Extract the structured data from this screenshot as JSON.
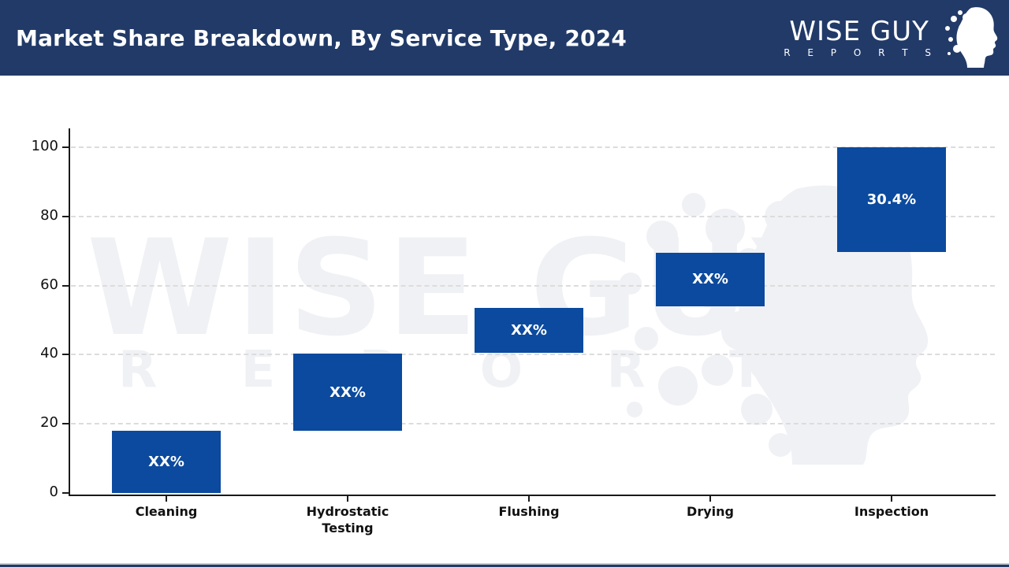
{
  "header": {
    "title": "Market Share Breakdown, By Service Type, 2024",
    "logo": {
      "line1": "WISE GUY",
      "line2": "R E P O R T S"
    },
    "bg_color": "#213a68"
  },
  "watermark": {
    "line1": "WISE GUY",
    "line2": "R E P O R T S"
  },
  "chart_data": {
    "type": "bar",
    "subtype": "waterfall",
    "title": "Market Share Breakdown, By Service Type, 2024",
    "xlabel": "",
    "ylabel": "",
    "ylim": [
      0,
      100
    ],
    "yticks": [
      0,
      20,
      40,
      60,
      80,
      100
    ],
    "grid": "horizontal-dashed",
    "legend": "none",
    "bar_color": "#0b4a9e",
    "categories": [
      "Cleaning",
      "Hydrostatic\nTesting",
      "Flushing",
      "Drying",
      "Inspection"
    ],
    "segments": [
      {
        "category": "Cleaning",
        "start": 0,
        "end": 18,
        "label": "XX%"
      },
      {
        "category": "Hydrostatic Testing",
        "start": 18,
        "end": 40.3,
        "label": "XX%"
      },
      {
        "category": "Flushing",
        "start": 40.5,
        "end": 53.5,
        "label": "XX%"
      },
      {
        "category": "Drying",
        "start": 54,
        "end": 69.5,
        "label": "XX%"
      },
      {
        "category": "Inspection",
        "start": 69.6,
        "end": 100,
        "label": "30.4%"
      }
    ]
  }
}
